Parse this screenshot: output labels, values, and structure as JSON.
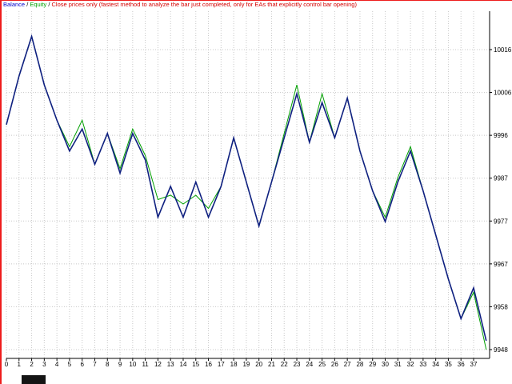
{
  "window": {
    "background": "#ffffff",
    "capture_border_color": "#ee1c1c"
  },
  "legend": {
    "balance_label": "Balance",
    "equity_label": "Equity",
    "separator": " / ",
    "model_text": "Close prices only (fastest method to analyze the bar just completed, only for EAs that explicitly control bar opening)",
    "balance_color": "#0000cc",
    "equity_color": "#00a000",
    "model_color": "#d40000",
    "separator_color": "#000000"
  },
  "chart_data": {
    "type": "line",
    "title": "",
    "xlabel": "",
    "ylabel": "",
    "grid": true,
    "grid_style": "dotted",
    "grid_color": "#c8c8c8",
    "legend_position": "top-left",
    "x_labels": [
      "0",
      "1",
      "2",
      "3",
      "4",
      "5",
      "6",
      "7",
      "8",
      "9",
      "10",
      "11",
      "12",
      "13",
      "14",
      "15",
      "16",
      "17",
      "18",
      "19",
      "20",
      "21",
      "22",
      "23",
      "24",
      "25",
      "26",
      "27",
      "28",
      "29",
      "30",
      "31",
      "32",
      "33",
      "34",
      "35",
      "36",
      "37"
    ],
    "y_ticks": [
      10016,
      10006,
      9996,
      9987,
      9977,
      9967,
      9958,
      9948
    ],
    "ylim": [
      9944,
      10022
    ],
    "note": "series have one extra point (index 38) extending past the last x label",
    "series": [
      {
        "name": "Balance",
        "color": "#0f2080",
        "width": 1.6,
        "values": [
          9999,
          10010,
          10019,
          10008,
          10000,
          9993,
          9998,
          9990,
          9997,
          9988,
          9997,
          9991,
          9978,
          9985,
          9978,
          9986,
          9978,
          9985,
          9996,
          9986,
          9976,
          9986,
          9996,
          10006,
          9995,
          10004,
          9996,
          10005,
          9993,
          9984,
          9977,
          9986,
          9993,
          9984,
          9974,
          9964,
          9955,
          9962,
          9950
        ]
      },
      {
        "name": "Equity",
        "color": "#00a000",
        "width": 1,
        "values": [
          9999,
          10010,
          10019,
          10008,
          10000,
          9994,
          10000,
          9990,
          9997,
          9989,
          9998,
          9992,
          9982,
          9983,
          9981,
          9983,
          9980,
          9985,
          9996,
          9986,
          9976,
          9986,
          9997,
          10008,
          9995,
          10006,
          9996,
          10005,
          9993,
          9984,
          9978,
          9987,
          9994,
          9984,
          9974,
          9964,
          9955,
          9961,
          9948
        ]
      }
    ],
    "axis_color": "#000000",
    "label_color": "#000000"
  },
  "bottom_bar": {
    "color": "#141414"
  }
}
